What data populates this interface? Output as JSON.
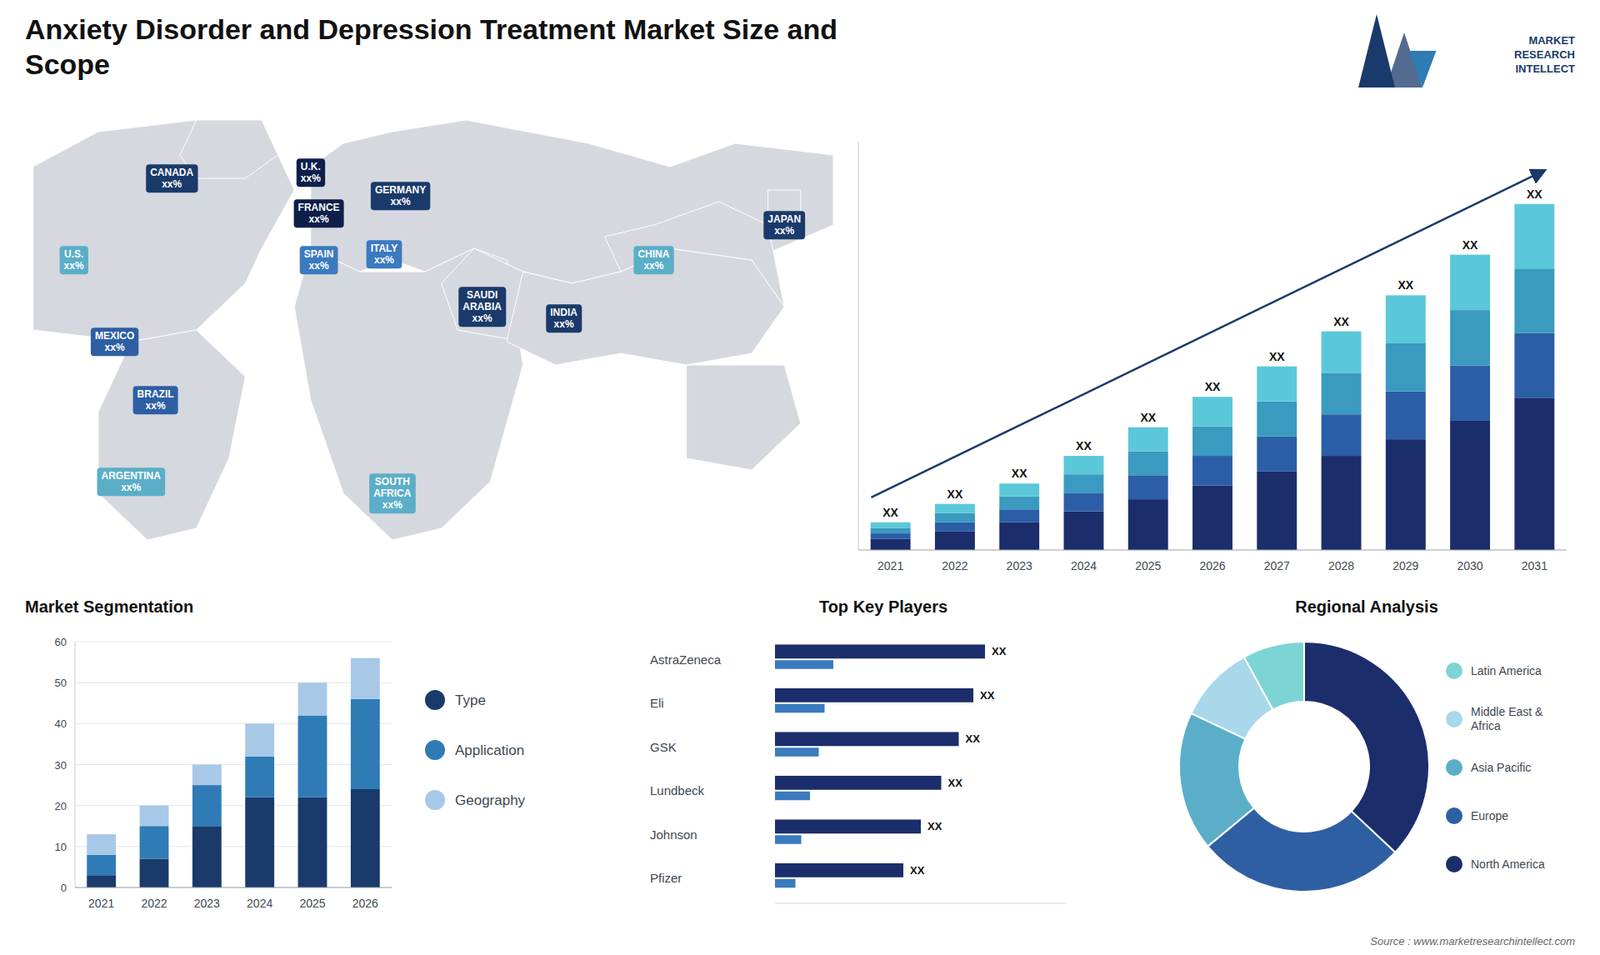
{
  "title": "Anxiety Disorder and Depression Treatment Market Size and\nScope",
  "annotations": [
    "MARKET\nRESEARCH\nINTELLECT",
    "Source : www.marketresearchintellect.com"
  ],
  "chart_data": [
    {
      "type": "map",
      "annotations": [
        "CANADA\nxx%",
        "U.S.\nxx%",
        "MEXICO\nxx%",
        "BRAZIL\nxx%",
        "ARGENTINA\nxx%",
        "U.K.\nxx%",
        "FRANCE\nxx%",
        "SPAIN\nxx%",
        "GERMANY\nxx%",
        "ITALY\nxx%",
        "SAUDI\nARABIA\nxx%",
        "SOUTH\nAFRICA\nxx%",
        "CHINA\nxx%",
        "INDIA\nxx%",
        "JAPAN\nxx%"
      ],
      "colors": [
        "#1a3a6b",
        "#5baec8",
        "#2e5fa3",
        "#2e5fa3",
        "#5baec8",
        "#0d1f4b",
        "#0d1f4b",
        "#3a7abf",
        "#1a3a6b",
        "#3a7abf",
        "#1a3a6b",
        "#5baec8",
        "#5baec8",
        "#1a3a6b",
        "#1a3a6b"
      ]
    },
    {
      "type": "bar",
      "stacked": true,
      "categories": [
        "2021",
        "2022",
        "2023",
        "2024",
        "2025",
        "2026",
        "2027",
        "2028",
        "2029",
        "2030",
        "2031"
      ],
      "series": [
        {
          "color": "#1b2d6b",
          "values": [
            1.2,
            2.0,
            3.0,
            4.2,
            5.5,
            7.0,
            8.5,
            10.2,
            12.0,
            14.0,
            16.5
          ]
        },
        {
          "color": "#2b5ea7",
          "values": [
            0.6,
            1.0,
            1.4,
            2.0,
            2.6,
            3.2,
            3.8,
            4.5,
            5.2,
            6.0,
            7.0
          ]
        },
        {
          "color": "#3a9abf",
          "values": [
            0.6,
            1.0,
            1.4,
            2.0,
            2.6,
            3.2,
            3.8,
            4.5,
            5.2,
            6.0,
            7.0
          ]
        },
        {
          "color": "#5bc8d9",
          "values": [
            0.6,
            1.0,
            1.4,
            2.0,
            2.6,
            3.2,
            3.8,
            4.5,
            5.2,
            6.0,
            7.0
          ]
        }
      ],
      "ylim": [
        0,
        44.25
      ],
      "tick_labels": "x",
      "annotations": [
        "XX",
        "XX",
        "XX",
        "XX",
        "XX",
        "XX",
        "XX",
        "XX",
        "XX",
        "XX",
        "XX"
      ]
    },
    {
      "type": "bar",
      "title": "Market Segmentation",
      "stacked": true,
      "categories": [
        "2021",
        "2022",
        "2023",
        "2024",
        "2025",
        "2026"
      ],
      "series": [
        {
          "name": "Type",
          "color": "#1a3a6b",
          "values": [
            3,
            7,
            15,
            22,
            22,
            24
          ]
        },
        {
          "name": "Application",
          "color": "#2e7bb5",
          "values": [
            5,
            8,
            10,
            10,
            20,
            22
          ]
        },
        {
          "name": "Geography",
          "color": "#a8c8e8",
          "values": [
            5,
            5,
            5,
            8,
            8,
            10
          ]
        }
      ],
      "ylim": [
        0,
        60
      ],
      "yticks": [
        0,
        10,
        20,
        30,
        40,
        50,
        60
      ],
      "grid": true,
      "legend": "right"
    },
    {
      "type": "bar",
      "title": "Top Key Players",
      "orientation": "horizontal",
      "categories": [
        "AstraZeneca",
        "Eli",
        "GSK",
        "Lundbeck",
        "Johnson",
        "Pfizer"
      ],
      "series": [
        {
          "color": "#1b2d6b",
          "values": [
            72,
            68,
            63,
            57,
            50,
            44
          ]
        },
        {
          "color": "#3a7abf",
          "values": [
            20,
            17,
            15,
            12,
            9,
            7
          ]
        }
      ],
      "xlim": [
        0,
        100
      ],
      "tick_labels": "y",
      "annotations": [
        "XX",
        "XX",
        "XX",
        "XX",
        "XX",
        "XX"
      ]
    },
    {
      "type": "donut",
      "title": "Regional Analysis",
      "categories": [
        "Latin America",
        "Middle East &\nAfrica",
        "Asia Pacific",
        "Europe",
        "North America"
      ],
      "values": [
        8,
        10,
        18,
        27,
        37
      ],
      "colors": [
        "#7dd4d4",
        "#a8d8ea",
        "#5baec8",
        "#2e5fa3",
        "#1b2d6b"
      ],
      "legend": "right"
    }
  ]
}
